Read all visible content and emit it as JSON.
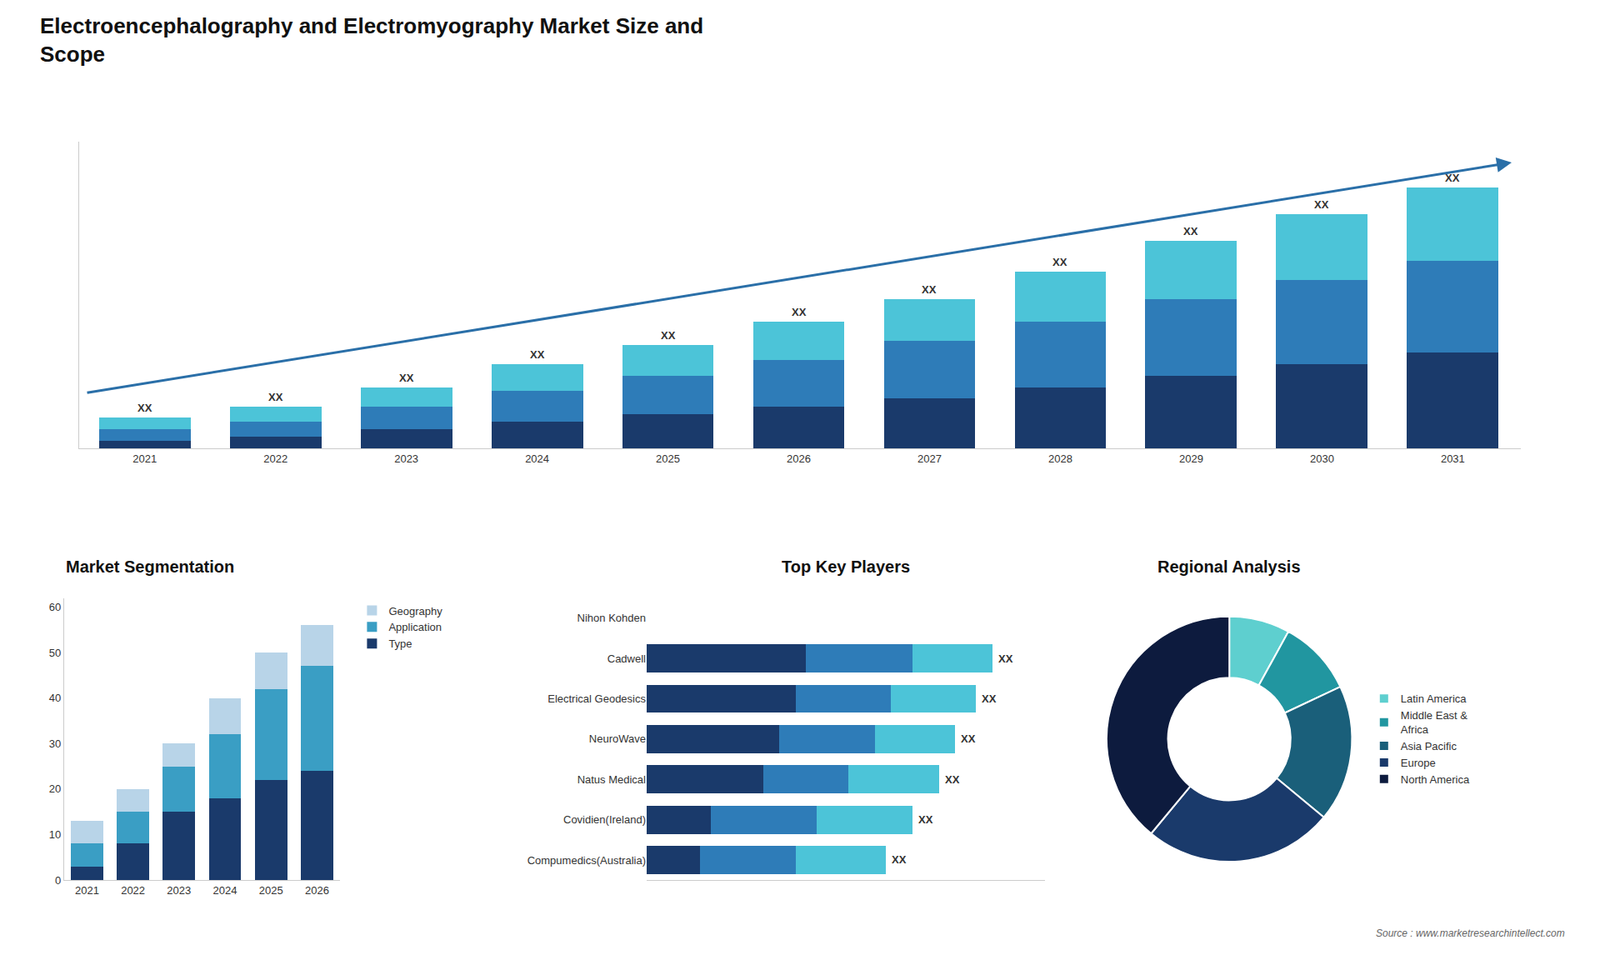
{
  "chart_data": [
    {
      "type": "bar",
      "stacked": true,
      "title": "Electroencephalography and Electromyography Market Size and\nScope",
      "categories": [
        "2021",
        "2022",
        "2023",
        "2024",
        "2025",
        "2026",
        "2027",
        "2028",
        "2029",
        "2030",
        "2031"
      ],
      "series": [
        {
          "color": "#1a3a6b",
          "values": [
            2,
            3,
            5,
            7,
            9,
            11,
            13,
            16,
            19,
            22,
            25
          ]
        },
        {
          "color": "#2e7cb8",
          "values": [
            3,
            4,
            6,
            8,
            10,
            12,
            15,
            17,
            20,
            22,
            24
          ]
        },
        {
          "color": "#4cc4d8",
          "values": [
            3,
            4,
            5,
            7,
            8,
            10,
            11,
            13,
            15,
            17,
            19
          ]
        }
      ],
      "ylim": [
        0,
        80
      ],
      "tick_labels": "x",
      "grid": false,
      "annotations": [
        {
          "text": "XX",
          "category": "2021"
        },
        {
          "text": "XX",
          "category": "2022"
        },
        {
          "text": "XX",
          "category": "2023"
        },
        {
          "text": "XX",
          "category": "2024"
        },
        {
          "text": "XX",
          "category": "2025"
        },
        {
          "text": "XX",
          "category": "2026"
        },
        {
          "text": "XX",
          "category": "2027"
        },
        {
          "text": "XX",
          "category": "2028"
        },
        {
          "text": "XX",
          "category": "2029"
        },
        {
          "text": "XX",
          "category": "2030"
        },
        {
          "text": "XX",
          "category": "2031"
        },
        {
          "text": "Source : www.marketresearchintellect.com"
        }
      ]
    },
    {
      "type": "bar",
      "stacked": true,
      "title": "Market Segmentation",
      "categories": [
        "2021",
        "2022",
        "2023",
        "2024",
        "2025",
        "2026"
      ],
      "series": [
        {
          "name": "Type",
          "color": "#1a3a6b",
          "values": [
            3,
            8,
            15,
            18,
            22,
            24
          ]
        },
        {
          "name": "Application",
          "color": "#3a9ec4",
          "values": [
            5,
            7,
            10,
            14,
            20,
            23
          ]
        },
        {
          "name": "Geography",
          "color": "#b8d4e8",
          "values": [
            5,
            5,
            5,
            8,
            8,
            9
          ]
        }
      ],
      "ylim": [
        0,
        62
      ],
      "yticks": [
        0,
        10,
        20,
        30,
        40,
        50,
        60
      ],
      "grid": false,
      "legend": "right"
    },
    {
      "type": "bar",
      "stacked": true,
      "orientation": "horizontal",
      "title": "Top Key Players",
      "categories": [
        "Nihon Kohden",
        "Cadwell",
        "Electrical Geodesics",
        "NeuroWave",
        "Natus Medical",
        "Covidien(Ireland)",
        "Compumedics(Australia)"
      ],
      "series": [
        {
          "color": "#1a3a6b",
          "values": [
            0,
            30,
            28,
            25,
            22,
            12,
            10
          ]
        },
        {
          "color": "#2e7cb8",
          "values": [
            0,
            20,
            18,
            18,
            16,
            20,
            18
          ]
        },
        {
          "color": "#4cc4d8",
          "values": [
            0,
            15,
            16,
            15,
            17,
            18,
            17
          ]
        }
      ],
      "xlim": [
        0,
        75
      ],
      "tick_labels": "y",
      "grid": false,
      "annotations": [
        {
          "text": "XX",
          "category": "Cadwell"
        },
        {
          "text": "XX",
          "category": "Electrical Geodesics"
        },
        {
          "text": "XX",
          "category": "NeuroWave"
        },
        {
          "text": "XX",
          "category": "Natus Medical"
        },
        {
          "text": "XX",
          "category": "Covidien(Ireland)"
        },
        {
          "text": "XX",
          "category": "Compumedics(Australia)"
        }
      ]
    },
    {
      "type": "donut",
      "title": "Regional Analysis",
      "categories": [
        "Latin America",
        "Middle East &\nAfrica",
        "Asia Pacific",
        "Europe",
        "North America"
      ],
      "values": [
        8,
        10,
        18,
        25,
        39
      ],
      "colors": [
        "#5ecfcf",
        "#2196a0",
        "#1a5f7a",
        "#1a3a6b",
        "#0d1b3e"
      ],
      "legend": "right"
    }
  ]
}
